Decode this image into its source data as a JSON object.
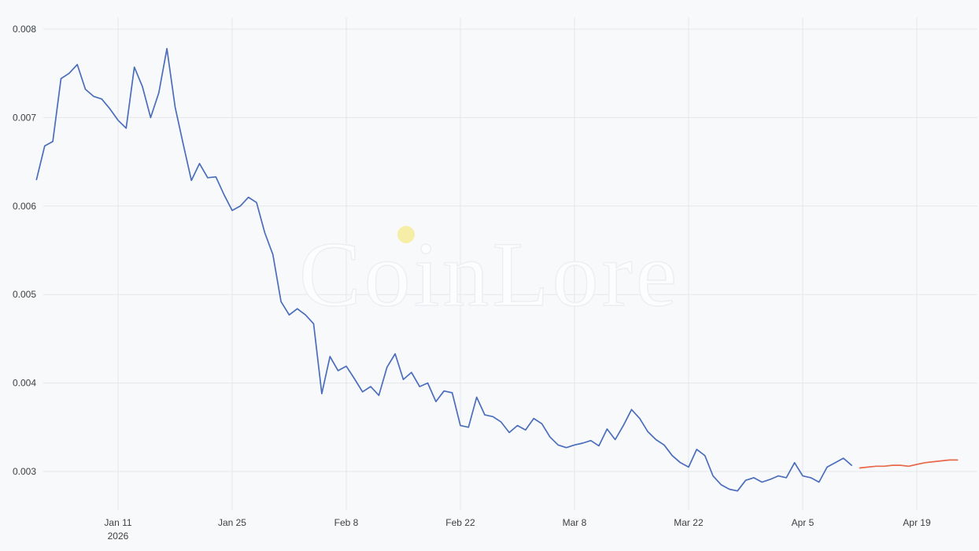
{
  "page": {
    "background_color": "#f8f9fb",
    "grid_color": "#e5e7ea",
    "tick_text_color": "#3c4043"
  },
  "watermark": {
    "text": "CoinLore",
    "dot_color": "#f5eda2",
    "outline_color": "#eceef1"
  },
  "chart_data": {
    "type": "line",
    "title": "",
    "xlabel": "",
    "ylabel": "",
    "grid": true,
    "legend": "none",
    "ylim": [
      0.00255,
      0.00815
    ],
    "x_axis_start_date": "Jan 1, 2026",
    "x_ticks": [
      {
        "day": 10,
        "label": "Jan 11",
        "sublabel": "2026"
      },
      {
        "day": 24,
        "label": "Jan 25",
        "sublabel": ""
      },
      {
        "day": 38,
        "label": "Feb 8",
        "sublabel": ""
      },
      {
        "day": 52,
        "label": "Feb 22",
        "sublabel": ""
      },
      {
        "day": 66,
        "label": "Mar 8",
        "sublabel": ""
      },
      {
        "day": 80,
        "label": "Mar 22",
        "sublabel": ""
      },
      {
        "day": 94,
        "label": "Apr 5",
        "sublabel": ""
      },
      {
        "day": 108,
        "label": "Apr 19",
        "sublabel": ""
      }
    ],
    "y_ticks": [
      {
        "value": 0.008,
        "label": "0.008"
      },
      {
        "value": 0.007,
        "label": "0.007"
      },
      {
        "value": 0.006,
        "label": "0.006"
      },
      {
        "value": 0.005,
        "label": "0.005"
      },
      {
        "value": 0.004,
        "label": "0.004"
      },
      {
        "value": 0.003,
        "label": "0.003"
      }
    ],
    "series": [
      {
        "name": "historical-price",
        "color": "#4a6dbc",
        "start_day": 0,
        "values": [
          0.0063,
          0.00668,
          0.00673,
          0.00744,
          0.0075,
          0.0076,
          0.00732,
          0.00724,
          0.00721,
          0.0071,
          0.00697,
          0.00688,
          0.00757,
          0.00735,
          0.007,
          0.00728,
          0.00778,
          0.00712,
          0.0067,
          0.00629,
          0.00648,
          0.00632,
          0.00633,
          0.00613,
          0.00595,
          0.006,
          0.0061,
          0.00604,
          0.0057,
          0.00545,
          0.00492,
          0.00477,
          0.00484,
          0.00477,
          0.00467,
          0.00388,
          0.0043,
          0.00414,
          0.00419,
          0.00405,
          0.0039,
          0.00396,
          0.00386,
          0.00418,
          0.00433,
          0.00404,
          0.00412,
          0.00396,
          0.004,
          0.00379,
          0.00391,
          0.00389,
          0.00352,
          0.0035,
          0.00384,
          0.00364,
          0.00362,
          0.00356,
          0.00344,
          0.00352,
          0.00347,
          0.0036,
          0.00354,
          0.00339,
          0.0033,
          0.00327,
          0.0033,
          0.00332,
          0.00335,
          0.00329,
          0.00348,
          0.00336,
          0.00352,
          0.0037,
          0.0036,
          0.00345,
          0.00336,
          0.0033,
          0.00318,
          0.0031,
          0.00305,
          0.00325,
          0.00318,
          0.00295,
          0.00285,
          0.0028,
          0.00278,
          0.0029,
          0.00293,
          0.00288,
          0.00291,
          0.00295,
          0.00293,
          0.0031,
          0.00295,
          0.00293,
          0.00288,
          0.00305,
          0.0031,
          0.00315,
          0.00307
        ]
      },
      {
        "name": "prediction",
        "color": "#e8684a",
        "start_day": 101,
        "values": [
          0.00304,
          0.00305,
          0.00306,
          0.00306,
          0.00307,
          0.00307,
          0.00306,
          0.00308,
          0.0031,
          0.00311,
          0.00312,
          0.00313,
          0.00313
        ]
      }
    ]
  }
}
